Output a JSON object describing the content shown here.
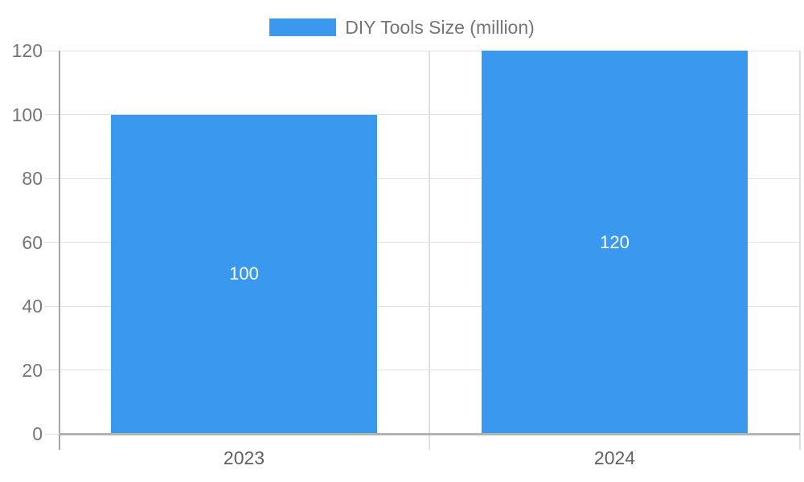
{
  "chart_data": {
    "type": "bar",
    "title": "",
    "xlabel": "",
    "ylabel": "",
    "legend": {
      "label": "DIY Tools Size (million)",
      "position": "top"
    },
    "categories": [
      "2023",
      "2024"
    ],
    "series": [
      {
        "name": "DIY Tools Size (million)",
        "values": [
          100,
          120
        ]
      }
    ],
    "value_labels": [
      "100",
      "120"
    ],
    "yticks": [
      0,
      20,
      40,
      60,
      80,
      100,
      120
    ],
    "ylim": [
      0,
      120
    ],
    "grid": true,
    "legend_position": "top",
    "colors": {
      "bar": "#3a99ee",
      "background": "#ffffff",
      "grid_line": "#e3e3e3",
      "category_separator": "#e0e0e0",
      "axis_line": "#a6a6a6",
      "baseline": "#b3b3b3",
      "tick_label": "#757575",
      "x_label": "#616161",
      "value_label": "#ffffff",
      "legend_text": "#757575"
    }
  }
}
